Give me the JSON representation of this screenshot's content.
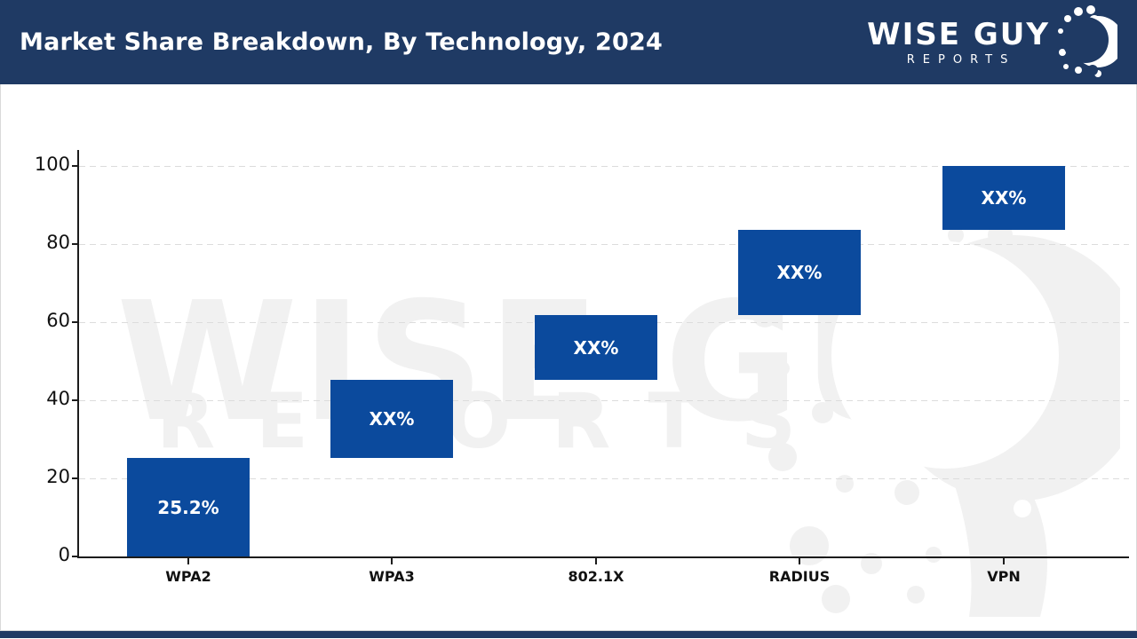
{
  "header": {
    "title": "Market Share Breakdown, By Technology, 2024",
    "logo": {
      "name": "WISE GUY",
      "sub": "REPORTS"
    }
  },
  "watermark": {
    "line1": "WISE GUY",
    "line2": "REPORTS"
  },
  "chart_data": {
    "type": "bar",
    "subtype": "floating-waterfall",
    "title": "Market Share Breakdown, By Technology, 2024",
    "categories": [
      "WPA2",
      "WPA3",
      "802.1X",
      "RADIUS",
      "VPN"
    ],
    "segments": [
      {
        "category": "WPA2",
        "start": 0,
        "end": 25.2,
        "label": "25.2%"
      },
      {
        "category": "WPA3",
        "start": 25.2,
        "end": 45.2,
        "label": "XX%"
      },
      {
        "category": "802.1X",
        "start": 45.2,
        "end": 61.8,
        "label": "XX%"
      },
      {
        "category": "RADIUS",
        "start": 61.8,
        "end": 83.7,
        "label": "XX%"
      },
      {
        "category": "VPN",
        "start": 83.7,
        "end": 100,
        "label": "XX%"
      }
    ],
    "yticks": [
      0,
      20,
      40,
      60,
      80,
      100
    ],
    "ylim": [
      0,
      105
    ],
    "xlabel": "",
    "ylabel": "",
    "grid": "horizontal-dashed",
    "legend": "none",
    "bar_color": "#0b4a9d",
    "bar_label_color": "#ffffff"
  },
  "colors": {
    "header_bg": "#1f3a64",
    "footer_bg": "#1f3a64",
    "bar": "#0b4a9d",
    "axis": "#1c1c1c",
    "grid": "#dcdcdc",
    "watermark": "#f1f1f1"
  }
}
